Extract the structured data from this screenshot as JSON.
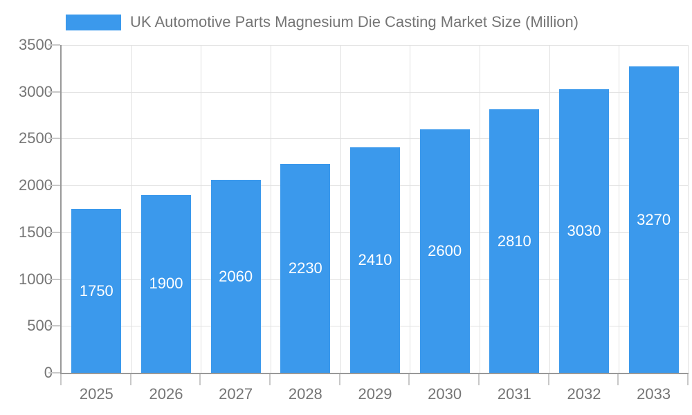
{
  "chart_data": {
    "type": "bar",
    "title": "UK Automotive Parts Magnesium Die Casting Market Size (Million)",
    "categories": [
      "2025",
      "2026",
      "2027",
      "2028",
      "2029",
      "2030",
      "2031",
      "2032",
      "2033"
    ],
    "values": [
      1750,
      1900,
      2060,
      2230,
      2410,
      2600,
      2810,
      3030,
      3270
    ],
    "bar_labels": [
      "1750",
      "1900",
      "2060",
      "2230",
      "2410",
      "2600",
      "2810",
      "3030",
      "3270"
    ],
    "xlabel": "",
    "ylabel": "",
    "ylim": [
      0,
      3500
    ],
    "yticks": [
      0,
      500,
      1000,
      1500,
      2000,
      2500,
      3000,
      3500
    ],
    "grid": true,
    "legend_position": "top-left",
    "colors": {
      "bar": "#3b99ec",
      "bar_label_text": "#ffffff",
      "axis_text": "#757575",
      "axis_line": "#999999",
      "tick_line": "#c8c8c8",
      "gridline": "#e0e0e0",
      "background": "#ffffff"
    }
  }
}
